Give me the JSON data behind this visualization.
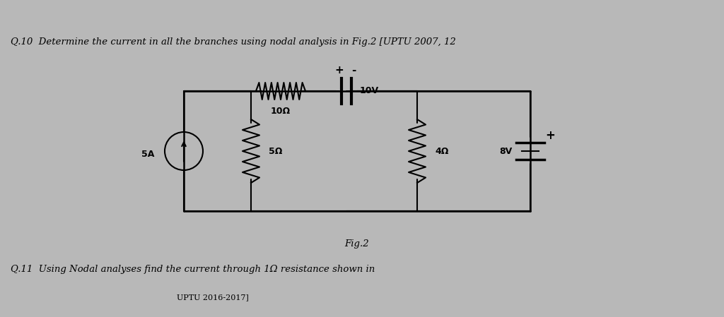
{
  "bg_color": "#b8b8b8",
  "title_text": "Q.10  Determine the current in all the branches using nodal analysis in Fig.2 [UPTU 2007, 12",
  "fig_label": "Fig.2",
  "q11_text": "Q.11  Using Nodal analyses find the current through 1Ω resistance shown in",
  "bottom_text": "UPTU 2016-2017]",
  "current_source_label": "5A",
  "r1_label": "5Ω",
  "r2_label": "10Ω",
  "v1_label": "10V",
  "r3_label": "4Ω",
  "v2_label": "8V",
  "circuit_bg": "#c8c8c8"
}
